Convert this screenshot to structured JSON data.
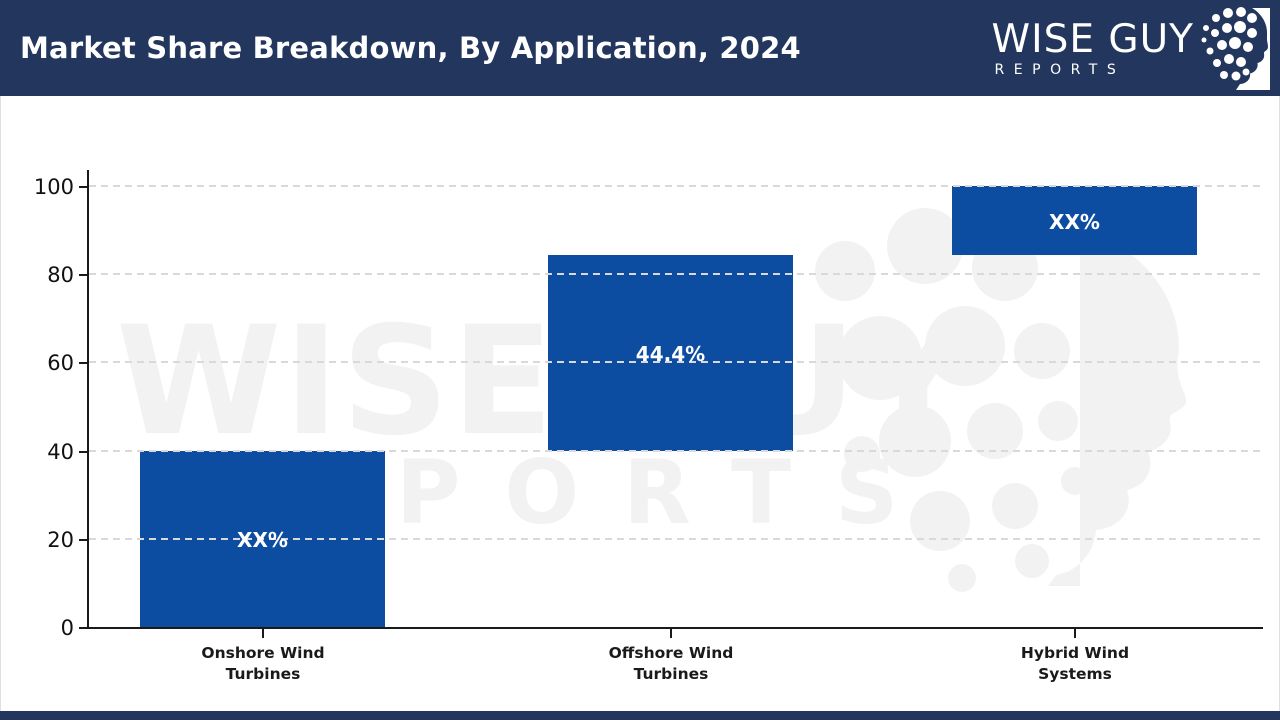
{
  "header": {
    "title": "Market Share Breakdown, By Application, 2024",
    "logo": {
      "line1": "WISE GUY",
      "line2": "REPORTS",
      "icon": "wise-guy-face-icon"
    }
  },
  "watermark": {
    "line1": "WISE GUY",
    "line2": "REPORTS",
    "icon": "wise-guy-face-watermark-icon"
  },
  "colors": {
    "header_bg": "#22365e",
    "bar": "#0c4da2",
    "axis": "#1a1a1a",
    "gridline": "#d9d9d9",
    "bar_label_text": "#ffffff",
    "watermark": "#f2f2f2"
  },
  "chart_data": {
    "type": "bar",
    "subtype": "waterfall",
    "title": "Market Share Breakdown, By Application, 2024",
    "xlabel": "",
    "ylabel": "",
    "categories": [
      "Onshore Wind\nTurbines",
      "Offshore Wind\nTurbines",
      "Hybrid Wind\nSystems"
    ],
    "segments": [
      {
        "category": "Onshore Wind Turbines",
        "start": 0,
        "end": 40,
        "value": 40,
        "value_label": "XX%"
      },
      {
        "category": "Offshore Wind Turbines",
        "start": 40,
        "end": 84.4,
        "value": 44.4,
        "value_label": "44.4%"
      },
      {
        "category": "Hybrid Wind Systems",
        "start": 84.4,
        "end": 100,
        "value": 15.6,
        "value_label": "XX%"
      }
    ],
    "yticks": [
      0,
      20,
      40,
      60,
      80,
      100
    ],
    "ylim": [
      0,
      100
    ],
    "grid": "horizontal-dashed",
    "grid_above_bars": true,
    "legend": "none"
  }
}
